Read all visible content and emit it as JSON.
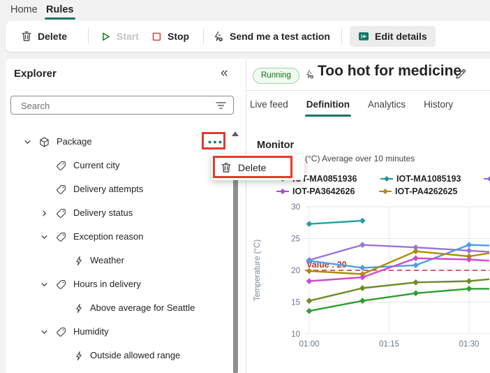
{
  "colors": {
    "accent": "#117865",
    "annotation_red": "#e5392e"
  },
  "nav": {
    "home": "Home",
    "rules": "Rules"
  },
  "toolbar": {
    "delete": "Delete",
    "start": "Start",
    "stop": "Stop",
    "send": "Send me a test action",
    "edit": "Edit details"
  },
  "explorer": {
    "title": "Explorer",
    "search_placeholder": "Search",
    "tree": [
      {
        "label": "Package",
        "icon": "package",
        "chevron": "down",
        "level": 0,
        "has_menu": true
      },
      {
        "label": "Current city",
        "icon": "tag",
        "chevron": "none",
        "level": 1
      },
      {
        "label": "Delivery attempts",
        "icon": "tag",
        "chevron": "none",
        "level": 1
      },
      {
        "label": "Delivery status",
        "icon": "tag",
        "chevron": "right",
        "level": 1
      },
      {
        "label": "Exception reason",
        "icon": "tag",
        "chevron": "down",
        "level": 1
      },
      {
        "label": "Weather",
        "icon": "bolt",
        "chevron": "none",
        "level": 2
      },
      {
        "label": "Hours in delivery",
        "icon": "tag",
        "chevron": "down",
        "level": 1
      },
      {
        "label": "Above average for Seattle",
        "icon": "bolt",
        "chevron": "none",
        "level": 2
      },
      {
        "label": "Humidity",
        "icon": "tag",
        "chevron": "down",
        "level": 1
      },
      {
        "label": "Outside allowed range",
        "icon": "bolt",
        "chevron": "none",
        "level": 2
      }
    ]
  },
  "context_menu": {
    "delete_label": "Delete"
  },
  "detail": {
    "status_badge": "Running",
    "title": "Too hot for medicine",
    "tabs": [
      {
        "label": "Live feed",
        "active": false
      },
      {
        "label": "Definition",
        "active": true
      },
      {
        "label": "Analytics",
        "active": false
      },
      {
        "label": "History",
        "active": false
      }
    ],
    "section_title": "Monitor"
  },
  "chart_data": {
    "type": "line",
    "subtitle": "(°C) Average over 10 minutes",
    "ylabel": "Temperature (°C)",
    "ylim": [
      10,
      30
    ],
    "yticks": [
      30,
      25,
      20,
      15,
      10
    ],
    "xtick_labels": [
      "01:00",
      "01:15",
      "01:30"
    ],
    "xtick_minutes": [
      60,
      75,
      90
    ],
    "x_minutes": [
      60,
      70,
      80,
      90,
      93.8
    ],
    "grid": true,
    "legend_position": "top",
    "threshold": {
      "label": "Value : 20",
      "value": 20,
      "color": "#b4343a"
    },
    "legend": [
      {
        "name": "IOT-MA0851936",
        "color": "#5b5fc7"
      },
      {
        "name": "IOT-MA1085193",
        "color": "#18999b"
      },
      {
        "name": "IOT-PA3642626",
        "color": "#a44fd0"
      },
      {
        "name": "IOT-PA4262625",
        "color": "#a78d13"
      }
    ],
    "legend_overflow_color": "#8a63d2",
    "series": [
      {
        "name": "teal",
        "color": "#27a0a2",
        "values": [
          27.3,
          27.8,
          null,
          null,
          null
        ]
      },
      {
        "name": "lavender",
        "color": "#9b74d8",
        "values": [
          21.6,
          24.0,
          23.6,
          23.1,
          22.9
        ]
      },
      {
        "name": "blue",
        "color": "#4f9de8",
        "values": [
          21.5,
          20.4,
          20.8,
          24.0,
          23.9
        ]
      },
      {
        "name": "gold",
        "color": "#ae8c00",
        "values": [
          19.9,
          19.4,
          23.0,
          22.2,
          22.7
        ]
      },
      {
        "name": "magenta",
        "color": "#cc4ccc",
        "values": [
          18.3,
          18.9,
          21.9,
          21.7,
          21.5
        ]
      },
      {
        "name": "olive",
        "color": "#6d8c23",
        "values": [
          15.2,
          17.2,
          18.1,
          18.3,
          18.6
        ]
      },
      {
        "name": "green",
        "color": "#2f9e2f",
        "values": [
          13.6,
          15.2,
          16.4,
          17.1,
          17.1
        ]
      }
    ]
  }
}
